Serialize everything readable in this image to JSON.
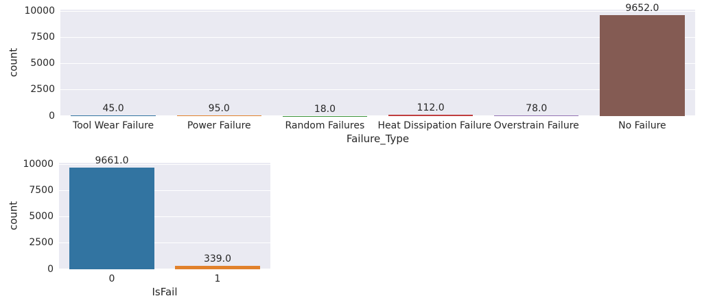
{
  "figure": {
    "background": "#ffffff",
    "plot_background": "#eaeaf2",
    "grid_color": "#ffffff",
    "text_color": "#262626"
  },
  "chart_data": [
    {
      "type": "bar",
      "title": "",
      "xlabel": "Failure_Type",
      "ylabel": "count",
      "categories": [
        "Tool Wear Failure",
        "Power Failure",
        "Random Failures",
        "Heat Dissipation Failure",
        "Overstrain Failure",
        "No Failure"
      ],
      "values": [
        45.0,
        95.0,
        18.0,
        112.0,
        78.0,
        9652.0
      ],
      "bar_labels": [
        "45.0",
        "95.0",
        "18.0",
        "112.0",
        "78.0",
        "9652.0"
      ],
      "bar_colors": [
        "#3274a1",
        "#e1812c",
        "#3a923a",
        "#c03d3e",
        "#9372b2",
        "#845b53"
      ],
      "ylim": [
        0,
        10144
      ],
      "yticks": [
        0,
        2500,
        5000,
        7500,
        10000
      ],
      "grid": true,
      "legend": null
    },
    {
      "type": "bar",
      "title": "",
      "xlabel": "IsFail",
      "ylabel": "count",
      "categories": [
        "0",
        "1"
      ],
      "values": [
        9661.0,
        339.0
      ],
      "bar_labels": [
        "9661.0",
        "339.0"
      ],
      "bar_colors": [
        "#3274a1",
        "#e1812c"
      ],
      "ylim": [
        0,
        10144
      ],
      "yticks": [
        0,
        2500,
        5000,
        7500,
        10000
      ],
      "grid": true,
      "legend": null
    }
  ]
}
